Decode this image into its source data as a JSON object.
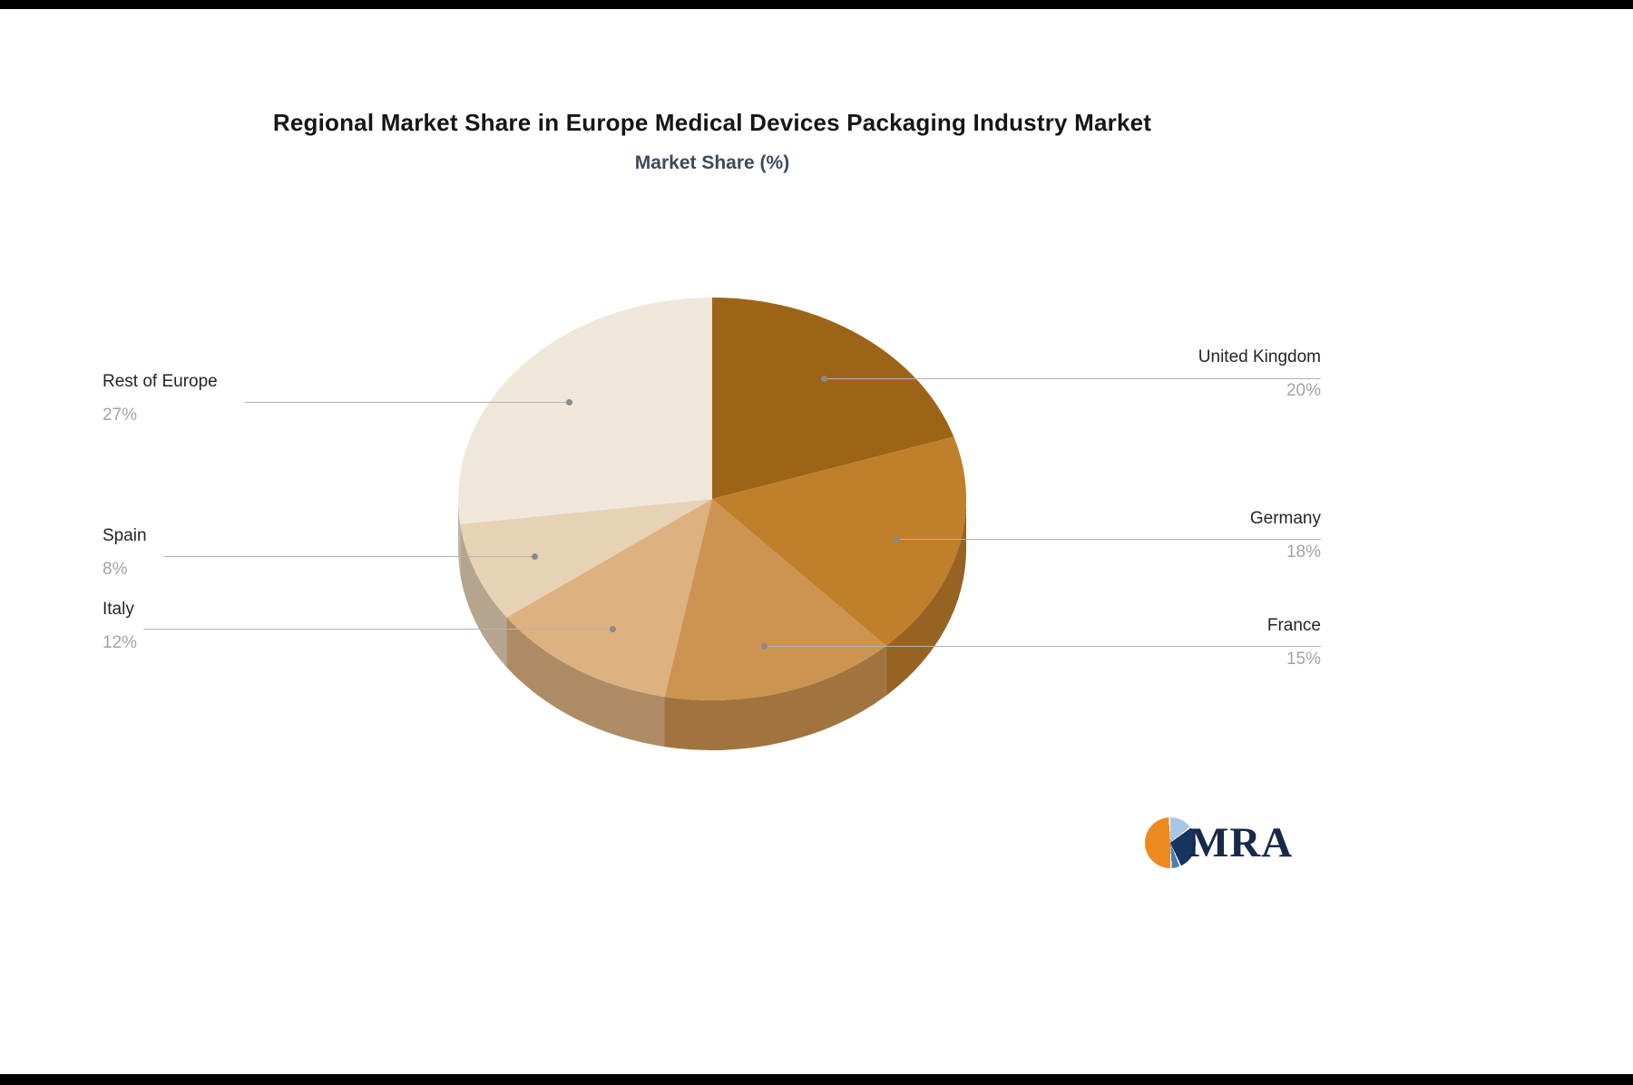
{
  "page": {
    "title": "Regional Market Share in Europe Medical Devices Packaging Industry Market",
    "subtitle": "Market Share (%)"
  },
  "chart_data": {
    "type": "pie",
    "style": "3d-pie",
    "title": "Regional Market Share in Europe Medical Devices Packaging Industry Market",
    "subtitle": "Market Share (%)",
    "unit": "%",
    "legend_position": "callout-labels",
    "slices": [
      {
        "label": "United Kingdom",
        "value": 20,
        "pct_label": "20%",
        "color": "#9d6418",
        "dark": "#7b4e12"
      },
      {
        "label": "Germany",
        "value": 18,
        "pct_label": "18%",
        "color": "#c07f2b",
        "dark": "#966322"
      },
      {
        "label": "France",
        "value": 15,
        "pct_label": "15%",
        "color": "#cd9350",
        "dark": "#a1743f"
      },
      {
        "label": "Italy",
        "value": 12,
        "pct_label": "12%",
        "color": "#ddb180",
        "dark": "#ad8b64"
      },
      {
        "label": "Spain",
        "value": 8,
        "pct_label": "8%",
        "color": "#e7d2b5",
        "dark": "#b5a58e"
      },
      {
        "label": "Rest of Europe",
        "value": 27,
        "pct_label": "27%",
        "color": "#efe7da",
        "dark": "#bcb5aa"
      }
    ]
  },
  "logo": {
    "text": "MRA"
  }
}
